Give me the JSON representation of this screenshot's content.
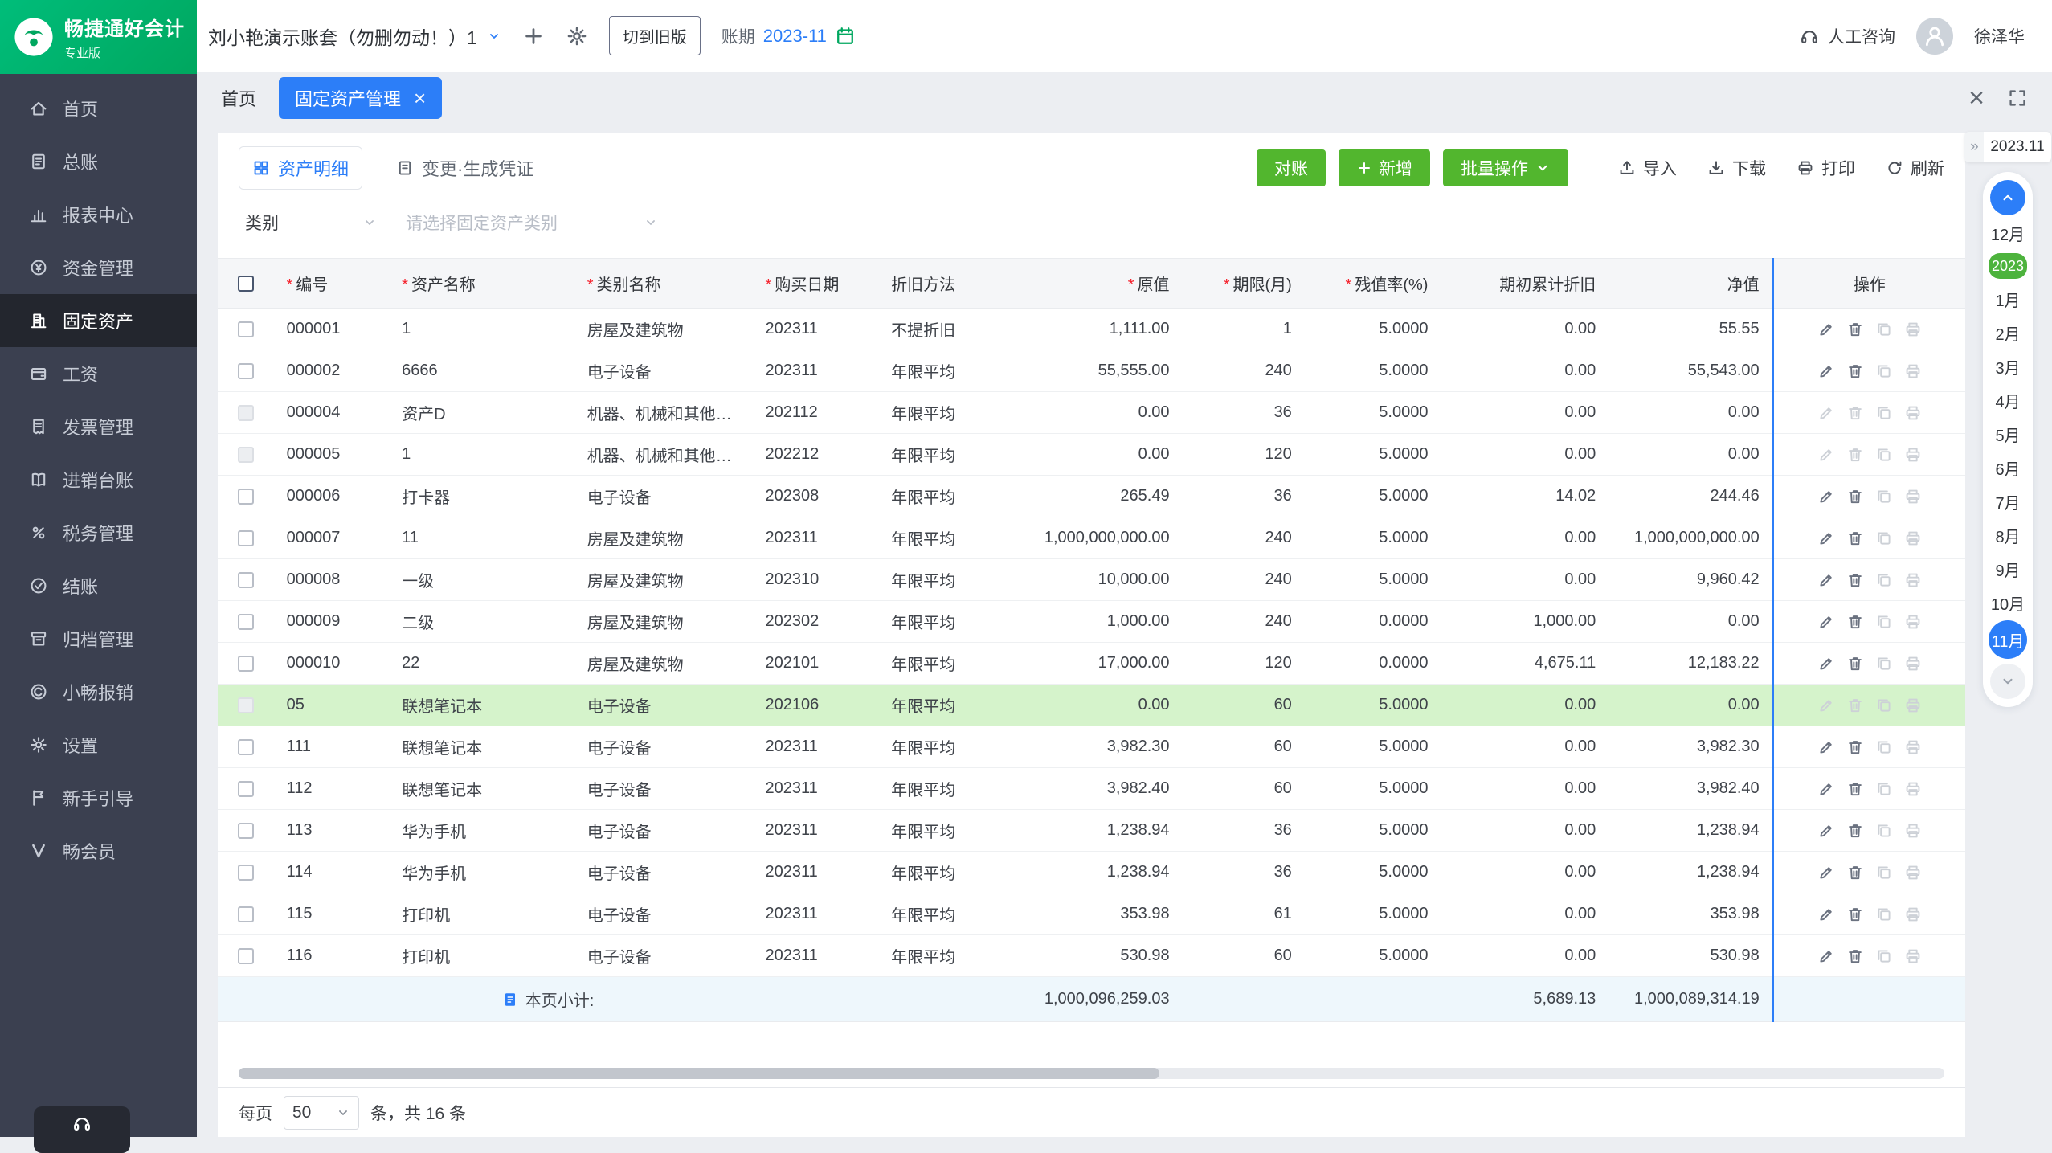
{
  "colors": {
    "accent_blue": "#2c7ef8",
    "accent_green": "#52b62e",
    "brand_green": "#00a75f",
    "sidebar_bg": "#3b4050",
    "highlight_row_bg": "#d5f3cb"
  },
  "app": {
    "logo_title": "畅捷通好会计",
    "logo_subtitle": "专业版"
  },
  "header": {
    "account_name": "刘小艳演示账套（勿删勿动！）1",
    "switch_old_version": "切到旧版",
    "period_label": "账期",
    "period_value": "2023-11",
    "consult_label": "人工咨询",
    "user_name": "徐泽华"
  },
  "window_tabs": [
    {
      "label": "首页"
    },
    {
      "label": "固定资产管理",
      "active": true,
      "closable": true
    }
  ],
  "sidebar": {
    "items": [
      {
        "id": "home",
        "icon": "home",
        "label": "首页"
      },
      {
        "id": "general-ledger",
        "icon": "ledger",
        "label": "总账"
      },
      {
        "id": "report-center",
        "icon": "reports",
        "label": "报表中心"
      },
      {
        "id": "funds",
        "icon": "funds",
        "label": "资金管理"
      },
      {
        "id": "fixed-assets",
        "icon": "building",
        "label": "固定资产",
        "active": true
      },
      {
        "id": "payroll",
        "icon": "wallet",
        "label": "工资"
      },
      {
        "id": "invoice",
        "icon": "receipt",
        "label": "发票管理"
      },
      {
        "id": "trade-ledger",
        "icon": "book",
        "label": "进销台账"
      },
      {
        "id": "tax",
        "icon": "percent",
        "label": "税务管理"
      },
      {
        "id": "closing",
        "icon": "check-circle",
        "label": "结账"
      },
      {
        "id": "archive",
        "icon": "archive",
        "label": "归档管理"
      },
      {
        "id": "reimburse",
        "icon": "c-circle",
        "label": "小畅报销"
      },
      {
        "id": "settings",
        "icon": "gear",
        "label": "设置"
      },
      {
        "id": "guide",
        "icon": "flag",
        "label": "新手引导"
      },
      {
        "id": "member",
        "icon": "v-mark",
        "label": "畅会员"
      }
    ]
  },
  "panel": {
    "tabs": [
      {
        "id": "asset-detail",
        "icon": "grid",
        "label": "资产明细",
        "active": true
      },
      {
        "id": "change-voucher",
        "icon": "doc",
        "label": "变更·生成凭证"
      }
    ],
    "buttons": {
      "reconcile": "对账",
      "add": "新增",
      "batch": "批量操作"
    },
    "tools": [
      {
        "id": "import",
        "icon": "import",
        "label": "导入"
      },
      {
        "id": "download",
        "icon": "download",
        "label": "下载"
      },
      {
        "id": "print",
        "icon": "print",
        "label": "打印"
      },
      {
        "id": "refresh",
        "icon": "refresh",
        "label": "刷新"
      }
    ],
    "filter": {
      "category_label": "类别",
      "category_placeholder": "请选择固定资产类别"
    }
  },
  "table": {
    "columns": [
      {
        "key": "code",
        "label": "编号",
        "required": true,
        "align": "left"
      },
      {
        "key": "name",
        "label": "资产名称",
        "required": true,
        "align": "left"
      },
      {
        "key": "category",
        "label": "类别名称",
        "required": true,
        "align": "left"
      },
      {
        "key": "purchase_date",
        "label": "购买日期",
        "required": true,
        "align": "left"
      },
      {
        "key": "method",
        "label": "折旧方法",
        "required": false,
        "align": "left"
      },
      {
        "key": "original_value",
        "label": "原值",
        "required": true,
        "align": "right"
      },
      {
        "key": "period_months",
        "label": "期限(月)",
        "required": true,
        "align": "right"
      },
      {
        "key": "residual_rate",
        "label": "残值率(%)",
        "required": true,
        "align": "right"
      },
      {
        "key": "accum_depreciation",
        "label": "期初累计折旧",
        "required": false,
        "align": "right"
      },
      {
        "key": "net_value",
        "label": "净值",
        "required": false,
        "align": "right"
      },
      {
        "key": "actions",
        "label": "操作",
        "required": false,
        "align": "center"
      }
    ],
    "rows": [
      {
        "code": "000001",
        "name": "1",
        "category": "房屋及建筑物",
        "purchase_date": "202311",
        "method": "不提折旧",
        "original_value": "1,111.00",
        "period_months": "1",
        "residual_rate": "5.0000",
        "accum_depreciation": "0.00",
        "net_value": "55.55",
        "disabled": false,
        "highlighted": false
      },
      {
        "code": "000002",
        "name": "6666",
        "category": "电子设备",
        "purchase_date": "202311",
        "method": "年限平均",
        "original_value": "55,555.00",
        "period_months": "240",
        "residual_rate": "5.0000",
        "accum_depreciation": "0.00",
        "net_value": "55,543.00",
        "disabled": false,
        "highlighted": false
      },
      {
        "code": "000004",
        "name": "资产D",
        "category": "机器、机械和其他生...",
        "purchase_date": "202112",
        "method": "年限平均",
        "original_value": "0.00",
        "period_months": "36",
        "residual_rate": "5.0000",
        "accum_depreciation": "0.00",
        "net_value": "0.00",
        "disabled": true,
        "highlighted": false
      },
      {
        "code": "000005",
        "name": "1",
        "category": "机器、机械和其他生...",
        "purchase_date": "202212",
        "method": "年限平均",
        "original_value": "0.00",
        "period_months": "120",
        "residual_rate": "5.0000",
        "accum_depreciation": "0.00",
        "net_value": "0.00",
        "disabled": true,
        "highlighted": false
      },
      {
        "code": "000006",
        "name": "打卡器",
        "category": "电子设备",
        "purchase_date": "202308",
        "method": "年限平均",
        "original_value": "265.49",
        "period_months": "36",
        "residual_rate": "5.0000",
        "accum_depreciation": "14.02",
        "net_value": "244.46",
        "disabled": false,
        "highlighted": false
      },
      {
        "code": "000007",
        "name": "11",
        "category": "房屋及建筑物",
        "purchase_date": "202311",
        "method": "年限平均",
        "original_value": "1,000,000,000.00",
        "period_months": "240",
        "residual_rate": "5.0000",
        "accum_depreciation": "0.00",
        "net_value": "1,000,000,000.00",
        "disabled": false,
        "highlighted": false
      },
      {
        "code": "000008",
        "name": "一级",
        "category": "房屋及建筑物",
        "purchase_date": "202310",
        "method": "年限平均",
        "original_value": "10,000.00",
        "period_months": "240",
        "residual_rate": "5.0000",
        "accum_depreciation": "0.00",
        "net_value": "9,960.42",
        "disabled": false,
        "highlighted": false
      },
      {
        "code": "000009",
        "name": "二级",
        "category": "房屋及建筑物",
        "purchase_date": "202302",
        "method": "年限平均",
        "original_value": "1,000.00",
        "period_months": "240",
        "residual_rate": "0.0000",
        "accum_depreciation": "1,000.00",
        "net_value": "0.00",
        "disabled": false,
        "highlighted": false
      },
      {
        "code": "000010",
        "name": "22",
        "category": "房屋及建筑物",
        "purchase_date": "202101",
        "method": "年限平均",
        "original_value": "17,000.00",
        "period_months": "120",
        "residual_rate": "0.0000",
        "accum_depreciation": "4,675.11",
        "net_value": "12,183.22",
        "disabled": false,
        "highlighted": false
      },
      {
        "code": "05",
        "name": "联想笔记本",
        "category": "电子设备",
        "purchase_date": "202106",
        "method": "年限平均",
        "original_value": "0.00",
        "period_months": "60",
        "residual_rate": "5.0000",
        "accum_depreciation": "0.00",
        "net_value": "0.00",
        "disabled": true,
        "highlighted": true
      },
      {
        "code": "111",
        "name": "联想笔记本",
        "category": "电子设备",
        "purchase_date": "202311",
        "method": "年限平均",
        "original_value": "3,982.30",
        "period_months": "60",
        "residual_rate": "5.0000",
        "accum_depreciation": "0.00",
        "net_value": "3,982.30",
        "disabled": false,
        "highlighted": false
      },
      {
        "code": "112",
        "name": "联想笔记本",
        "category": "电子设备",
        "purchase_date": "202311",
        "method": "年限平均",
        "original_value": "3,982.40",
        "period_months": "60",
        "residual_rate": "5.0000",
        "accum_depreciation": "0.00",
        "net_value": "3,982.40",
        "disabled": false,
        "highlighted": false
      },
      {
        "code": "113",
        "name": "华为手机",
        "category": "电子设备",
        "purchase_date": "202311",
        "method": "年限平均",
        "original_value": "1,238.94",
        "period_months": "36",
        "residual_rate": "5.0000",
        "accum_depreciation": "0.00",
        "net_value": "1,238.94",
        "disabled": false,
        "highlighted": false
      },
      {
        "code": "114",
        "name": "华为手机",
        "category": "电子设备",
        "purchase_date": "202311",
        "method": "年限平均",
        "original_value": "1,238.94",
        "period_months": "36",
        "residual_rate": "5.0000",
        "accum_depreciation": "0.00",
        "net_value": "1,238.94",
        "disabled": false,
        "highlighted": false
      },
      {
        "code": "115",
        "name": "打印机",
        "category": "电子设备",
        "purchase_date": "202311",
        "method": "年限平均",
        "original_value": "353.98",
        "period_months": "61",
        "residual_rate": "5.0000",
        "accum_depreciation": "0.00",
        "net_value": "353.98",
        "disabled": false,
        "highlighted": false
      },
      {
        "code": "116",
        "name": "打印机",
        "category": "电子设备",
        "purchase_date": "202311",
        "method": "年限平均",
        "original_value": "530.98",
        "period_months": "60",
        "residual_rate": "5.0000",
        "accum_depreciation": "0.00",
        "net_value": "530.98",
        "disabled": false,
        "highlighted": false
      }
    ],
    "summary": {
      "label": "本页小计:",
      "method": "",
      "original_value": "1,000,096,259.03",
      "period_months": "",
      "residual_rate": "",
      "accum_depreciation": "5,689.13",
      "net_value": "1,000,089,314.19"
    }
  },
  "calendar": {
    "current": "2023.11",
    "months": [
      {
        "label": "12月"
      },
      {
        "label": "2023",
        "type": "year"
      },
      {
        "label": "1月"
      },
      {
        "label": "2月"
      },
      {
        "label": "3月"
      },
      {
        "label": "4月"
      },
      {
        "label": "5月"
      },
      {
        "label": "6月"
      },
      {
        "label": "7月"
      },
      {
        "label": "8月"
      },
      {
        "label": "9月"
      },
      {
        "label": "10月"
      },
      {
        "label": "11月",
        "active": true
      }
    ]
  },
  "pagination": {
    "per_page_label": "每页",
    "per_page_value": "50",
    "count_suffix": "条，共 16 条"
  }
}
